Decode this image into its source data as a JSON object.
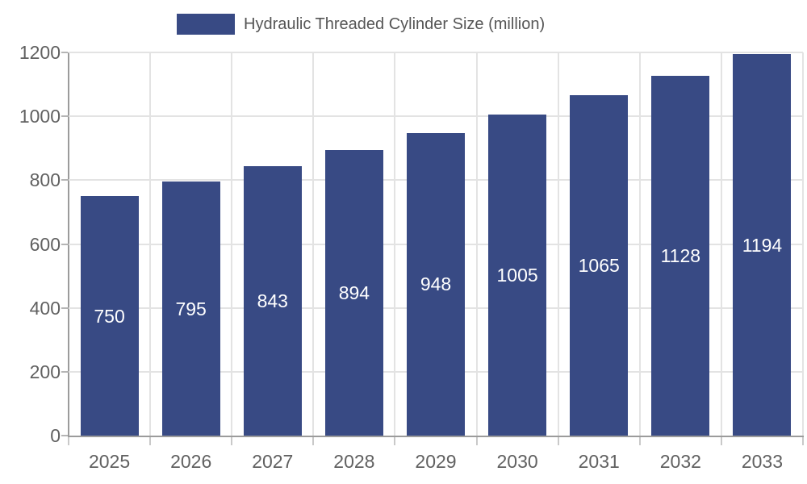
{
  "legend": {
    "label": "Hydraulic Threaded Cylinder Size (million)"
  },
  "chart_data": {
    "type": "bar",
    "title": "",
    "xlabel": "",
    "ylabel": "",
    "categories": [
      "2025",
      "2026",
      "2027",
      "2028",
      "2029",
      "2030",
      "2031",
      "2032",
      "2033"
    ],
    "series": [
      {
        "name": "Hydraulic Threaded Cylinder Size (million)",
        "values": [
          750,
          795,
          843,
          894,
          948,
          1005,
          1065,
          1128,
          1194
        ]
      }
    ],
    "ylim": [
      0,
      1200
    ],
    "yticks": [
      0,
      200,
      400,
      600,
      800,
      1000,
      1200
    ],
    "grid": true,
    "legend_position": "top-center",
    "value_labels": "inside-center",
    "colors": {
      "bar": "#384a84",
      "value_label": "#ffffff",
      "axis_label": "#616161",
      "legend_text": "#555555",
      "gridline": "#e3e3e3",
      "axis_line": "#9b9b9b",
      "background": "#ffffff"
    }
  }
}
